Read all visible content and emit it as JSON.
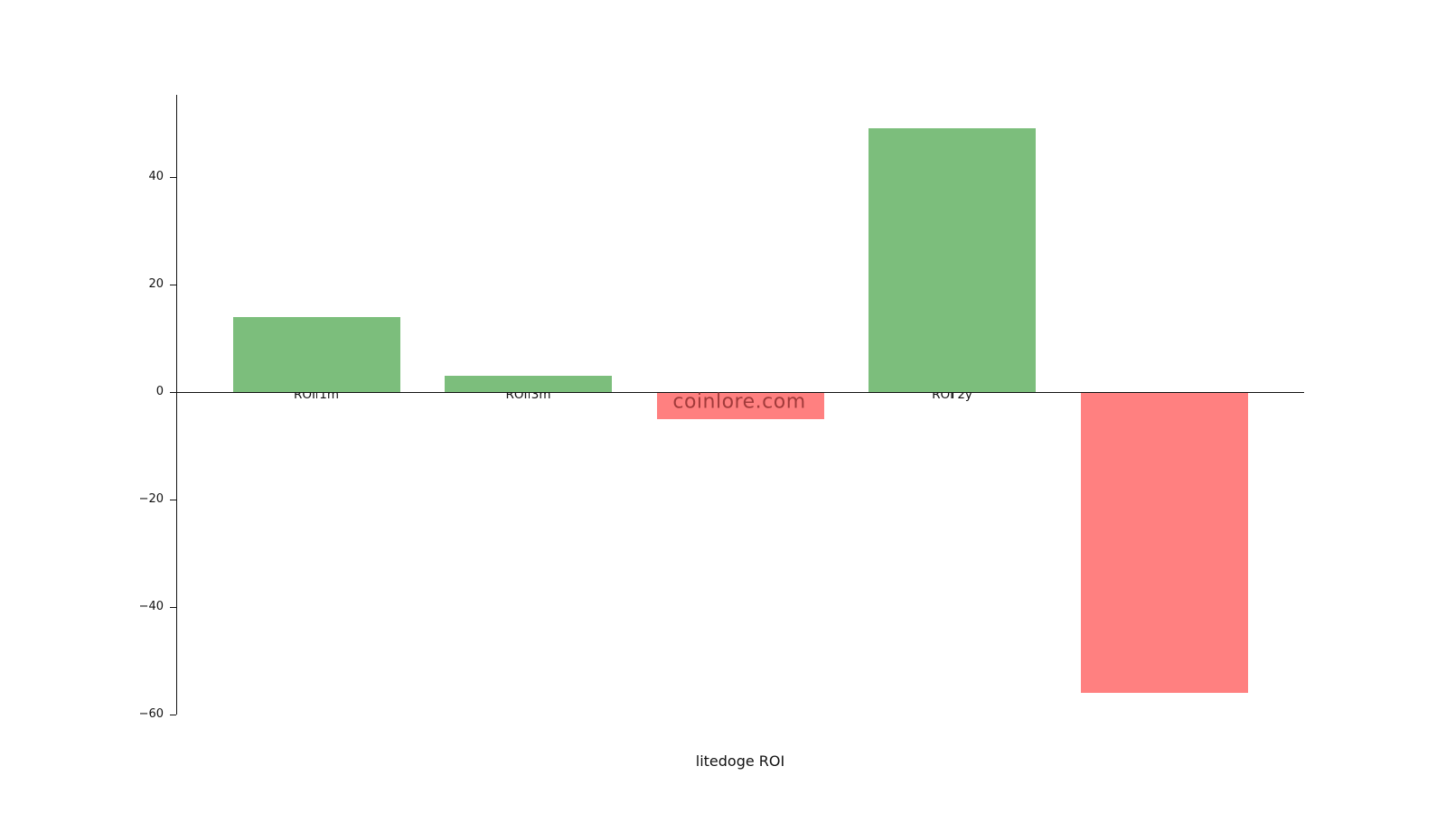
{
  "watermark": {
    "text": "coinlore.com",
    "color": "#a23b3b"
  },
  "chart_data": {
    "type": "bar",
    "title": "",
    "xlabel": "litedoge ROI",
    "ylabel": "",
    "categories": [
      "ROI 1m",
      "ROI 3m",
      "",
      "ROI 2y",
      ""
    ],
    "values": [
      14,
      3,
      -5,
      49,
      -56
    ],
    "positive_color": "#7cbe7c",
    "negative_color": "#ff8080",
    "yticks": [
      40,
      20,
      0,
      -20,
      -40,
      -60
    ],
    "ylim": [
      -61,
      55.3
    ],
    "grid": false,
    "legend": false,
    "axis_color": "#111111",
    "background_color": "#ffffff"
  }
}
